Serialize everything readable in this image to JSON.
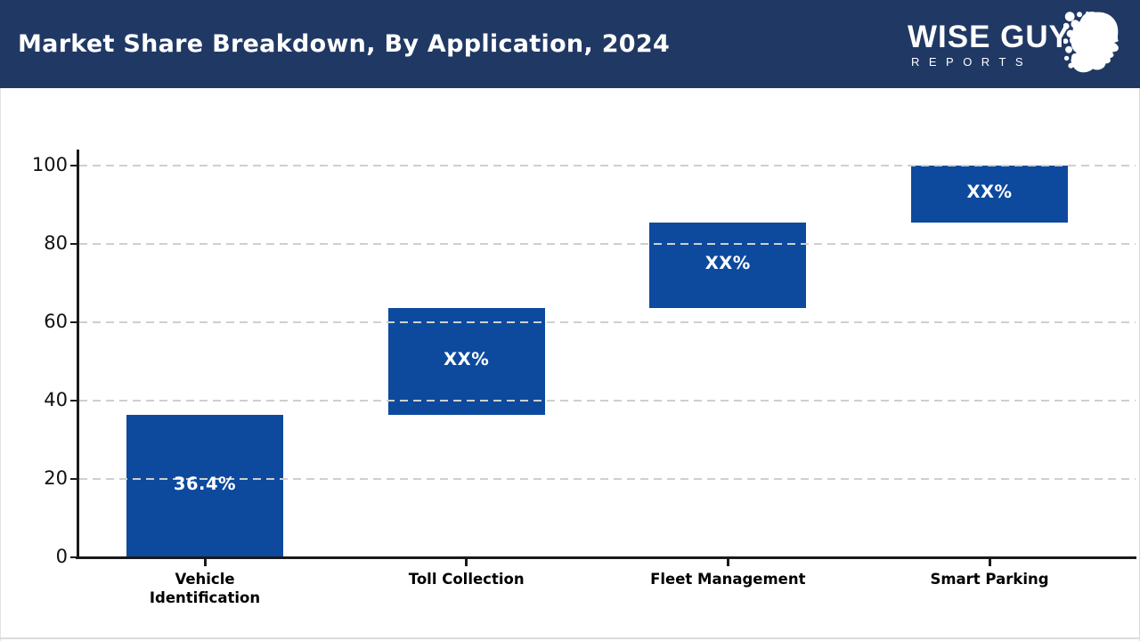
{
  "header": {
    "title": "Market Share Breakdown, By Application, 2024",
    "logo": {
      "line1": "WISE GUY",
      "line2": "REPORTS"
    }
  },
  "watermark": {
    "line1": "WISE GUY",
    "line2": "REPORTS"
  },
  "colors": {
    "header_bg": "#203864",
    "bar_fill": "#0d4a9e",
    "bar_label_text": "#ffffff",
    "gridline": "#cfcfcf",
    "axis": "#1a1a1a",
    "watermark": "#f1f2f4"
  },
  "chart_data": {
    "type": "bar",
    "variant": "floating-segment (waterfall-style, each bar starts where previous ends)",
    "title": "Market Share Breakdown, By Application, 2024",
    "categories": [
      [
        "Vehicle",
        "Identification"
      ],
      [
        "Toll Collection"
      ],
      [
        "Fleet Management"
      ],
      [
        "Smart Parking"
      ]
    ],
    "segments": [
      {
        "start": 0,
        "end": 36.4,
        "value": 36.4,
        "label": "36.4%"
      },
      {
        "start": 36.4,
        "end": 63.6,
        "value": 27.2,
        "label": "XX%"
      },
      {
        "start": 63.6,
        "end": 85.5,
        "value": 21.9,
        "label": "XX%"
      },
      {
        "start": 85.5,
        "end": 100,
        "value": 14.5,
        "label": "XX%"
      }
    ],
    "xlabel": "",
    "ylabel": "",
    "ylim": [
      0,
      100
    ],
    "yticks": [
      0,
      20,
      40,
      60,
      80,
      100
    ],
    "grid": "horizontal dashed lines drawn over bars",
    "legend": "none"
  }
}
